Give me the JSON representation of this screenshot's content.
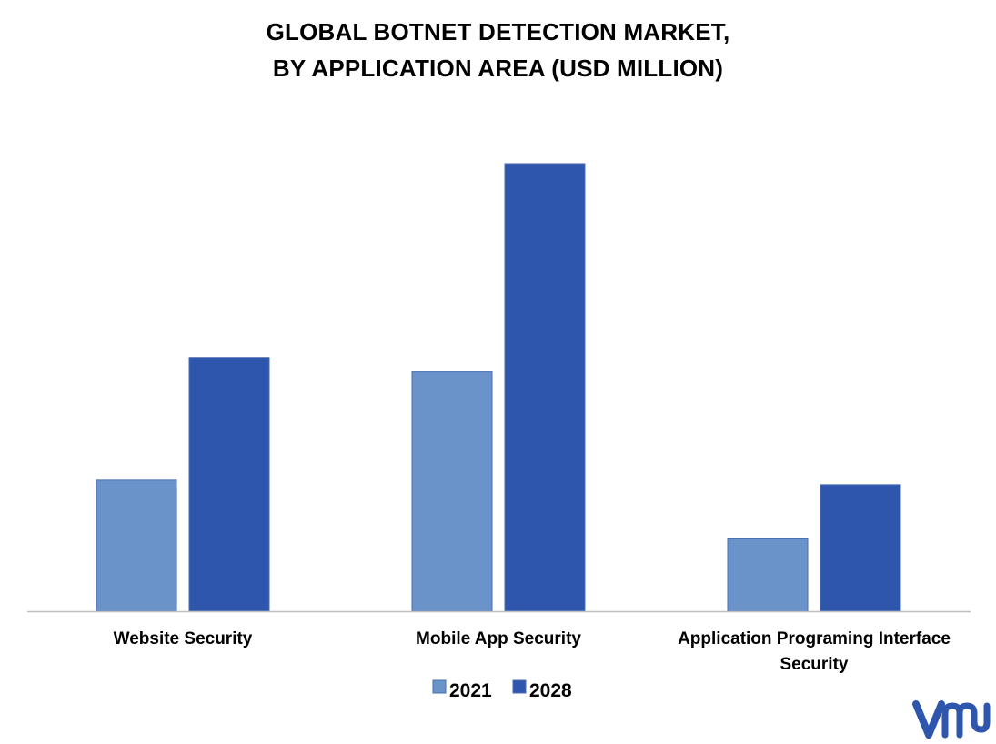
{
  "chart_data": {
    "type": "bar",
    "title_line1": "GLOBAL BOTNET DETECTION MARKET,",
    "title_line2": "BY APPLICATION AREA (USD MILLION)",
    "categories": [
      "Website Security",
      "Mobile App Security",
      "Application Programing Interface Security"
    ],
    "series": [
      {
        "name": "2021",
        "color": "#6a93c9",
        "values": [
          29,
          53,
          16
        ]
      },
      {
        "name": "2028",
        "color": "#2e56ad",
        "values": [
          56,
          99,
          28
        ]
      }
    ],
    "ylim": [
      0,
      100
    ],
    "xlabel": "",
    "ylabel": "",
    "grid": false,
    "legend_position": "bottom"
  },
  "logo": {
    "name": "vmr-logo",
    "color": "#2e56ad"
  }
}
